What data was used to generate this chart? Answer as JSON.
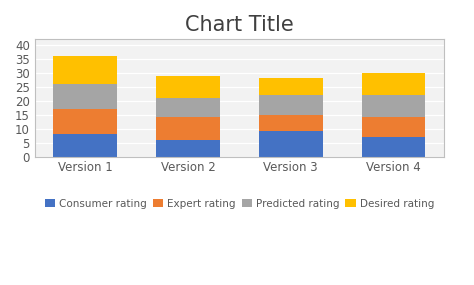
{
  "categories": [
    "Version 1",
    "Version 2",
    "Version 3",
    "Version 4"
  ],
  "series": {
    "Consumer rating": [
      8,
      6,
      9,
      7
    ],
    "Expert rating": [
      9,
      8,
      6,
      7
    ],
    "Predicted rating": [
      9,
      7,
      7,
      8
    ],
    "Desired rating": [
      10,
      8,
      6,
      8
    ]
  },
  "colors": {
    "Consumer rating": "#4472C4",
    "Expert rating": "#ED7D31",
    "Predicted rating": "#A5A5A5",
    "Desired rating": "#FFC000"
  },
  "title": "Chart Title",
  "ylim": [
    0,
    42
  ],
  "yticks": [
    0,
    5,
    10,
    15,
    20,
    25,
    30,
    35,
    40
  ],
  "title_fontsize": 15,
  "legend_fontsize": 7.5,
  "tick_fontsize": 8.5,
  "background_color": "#FFFFFF",
  "plot_bg_color": "#F2F2F2",
  "grid_color": "#FFFFFF",
  "spine_color": "#BFBFBF",
  "bar_width": 0.62
}
